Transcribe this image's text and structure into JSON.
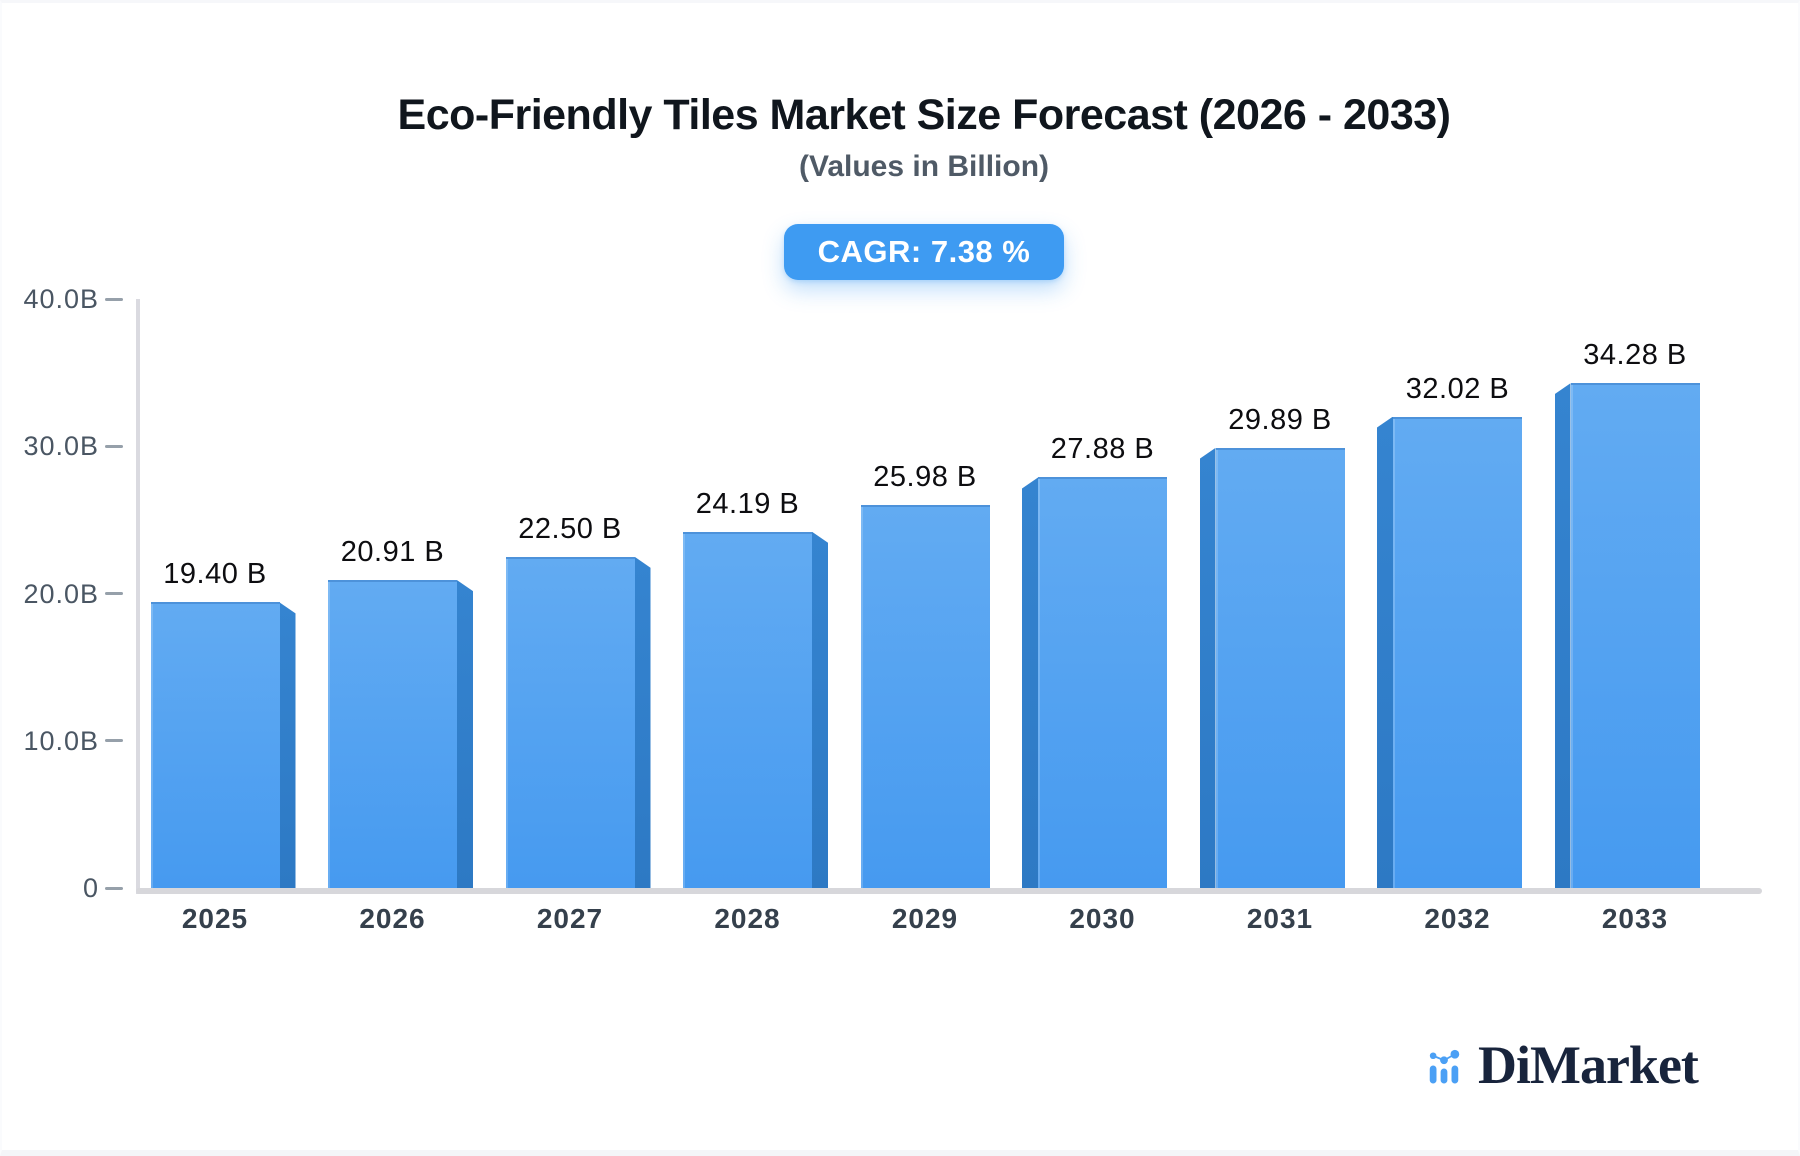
{
  "title": "Eco-Friendly Tiles Market Size Forecast (2026 - 2033)",
  "subtitle": "(Values in Billion)",
  "badge": {
    "label": "CAGR: 7.38 %",
    "bg_color": "#3e9bf2",
    "text_color": "#ffffff"
  },
  "watermark": {
    "brand": "DiMarket",
    "icon": "bar-line-chart-icon",
    "icon_color": "#4ba0f5",
    "text_color": "#18243c"
  },
  "chart_data": {
    "type": "bar",
    "title": "Eco-Friendly Tiles Market Size Forecast (2026 - 2033)",
    "subtitle": "(Values in Billion)",
    "xlabel": "",
    "ylabel": "",
    "unit": "Billion",
    "categories": [
      "2025",
      "2026",
      "2027",
      "2028",
      "2029",
      "2030",
      "2031",
      "2032",
      "2033"
    ],
    "values": [
      19.4,
      20.91,
      22.5,
      24.19,
      25.98,
      27.88,
      29.89,
      32.02,
      34.28
    ],
    "value_labels": [
      "19.40 B",
      "20.91 B",
      "22.50 B",
      "24.19 B",
      "25.98 B",
      "27.88 B",
      "29.89 B",
      "32.02 B",
      "34.28 B"
    ],
    "cagr_percent": 7.38,
    "ylim": [
      0,
      40
    ],
    "y_ticks": [
      {
        "label": "40.0B",
        "value": 40
      },
      {
        "label": "30.0B",
        "value": 30
      },
      {
        "label": "20.0B",
        "value": 20
      },
      {
        "label": "10.0B",
        "value": 10
      },
      {
        "label": "0",
        "value": 0
      }
    ],
    "grid": false,
    "legend": "none",
    "effect": "3d-extruded-bars-center-perspective",
    "bar_front_top_color": "#62abf2",
    "bar_front_bottom_color": "#469af0",
    "bar_side_color_light": "#3584d0",
    "bar_side_color_dark": "#2d79c4"
  },
  "colors": {
    "background": "#ffffff",
    "axis_line": "#dadae0",
    "baseline": "#d7d7db",
    "tick_mark": "#96a0aa",
    "y_label_text": "#4a5663",
    "x_label_text": "#35404c",
    "value_label_text": "#0d0d10",
    "title_text": "#10161d",
    "subtitle_text": "#4f5a66"
  }
}
